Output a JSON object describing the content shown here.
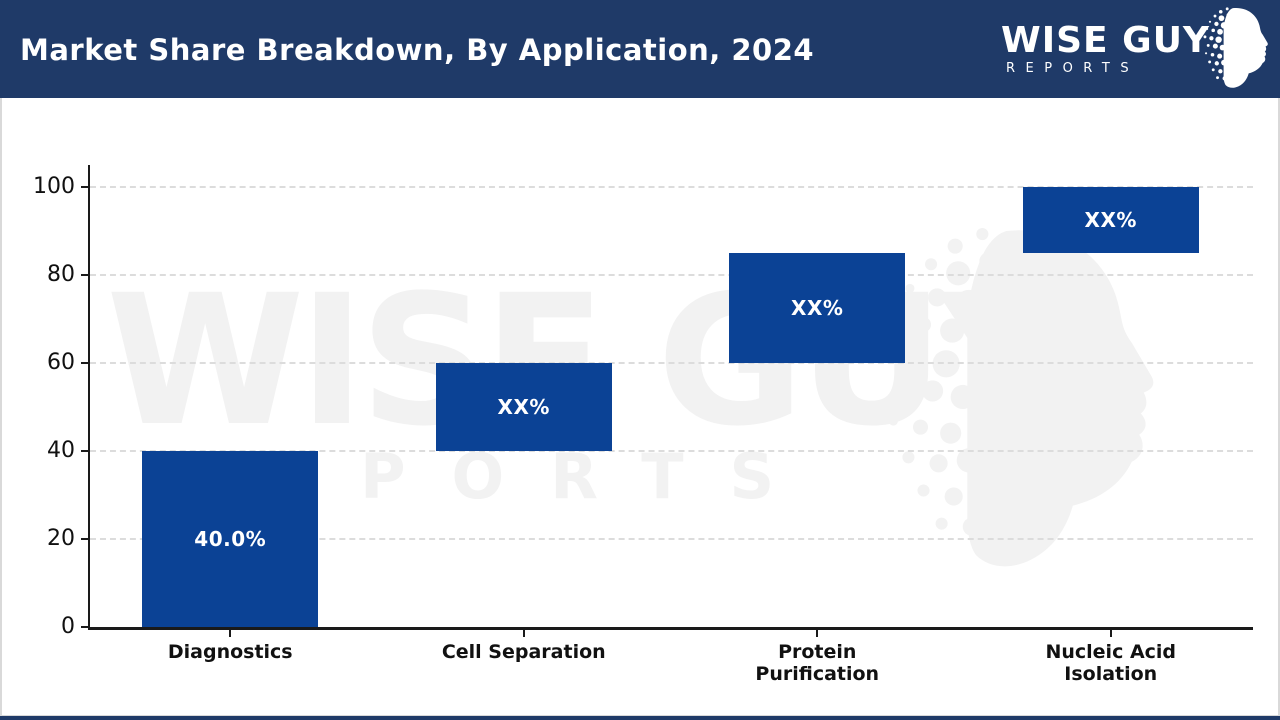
{
  "header": {
    "title": "Market Share Breakdown, By Application, 2024",
    "bg_color": "#1f3a68",
    "logo": {
      "line1": "WISE GUY",
      "line2": "REPORTS"
    }
  },
  "watermark": {
    "line1": "WISE GUY",
    "line2": "REPORTS"
  },
  "footer": {
    "bg_color": "#1f3a68"
  },
  "chart_data": {
    "type": "bar",
    "variant": "stacked-waterfall",
    "title": "Market Share Breakdown, By Application, 2024",
    "xlabel": "",
    "ylabel": "",
    "categories": [
      "Diagnostics",
      "Cell Separation",
      "Protein Purification",
      "Nucleic Acid Isolation"
    ],
    "values": [
      {
        "category": "Diagnostics",
        "start": 0,
        "end": 40,
        "label": "40.0%"
      },
      {
        "category": "Cell Separation",
        "start": 40,
        "end": 60,
        "label": "XX%"
      },
      {
        "category": "Protein Purification",
        "start": 60,
        "end": 85,
        "label": "XX%"
      },
      {
        "category": "Nucleic Acid Isolation",
        "start": 85,
        "end": 100,
        "label": "XX%"
      }
    ],
    "yticks": [
      0,
      20,
      40,
      60,
      80,
      100
    ],
    "ylim": [
      0,
      105
    ],
    "grid": "dashed-horizontal",
    "legend": "none",
    "bar_color": "#0b4295",
    "bar_label_color": "#ffffff",
    "grid_color": "#dcdcdc",
    "axis_color": "#1a1a1a",
    "watermark_color": "#f2f2f2"
  }
}
